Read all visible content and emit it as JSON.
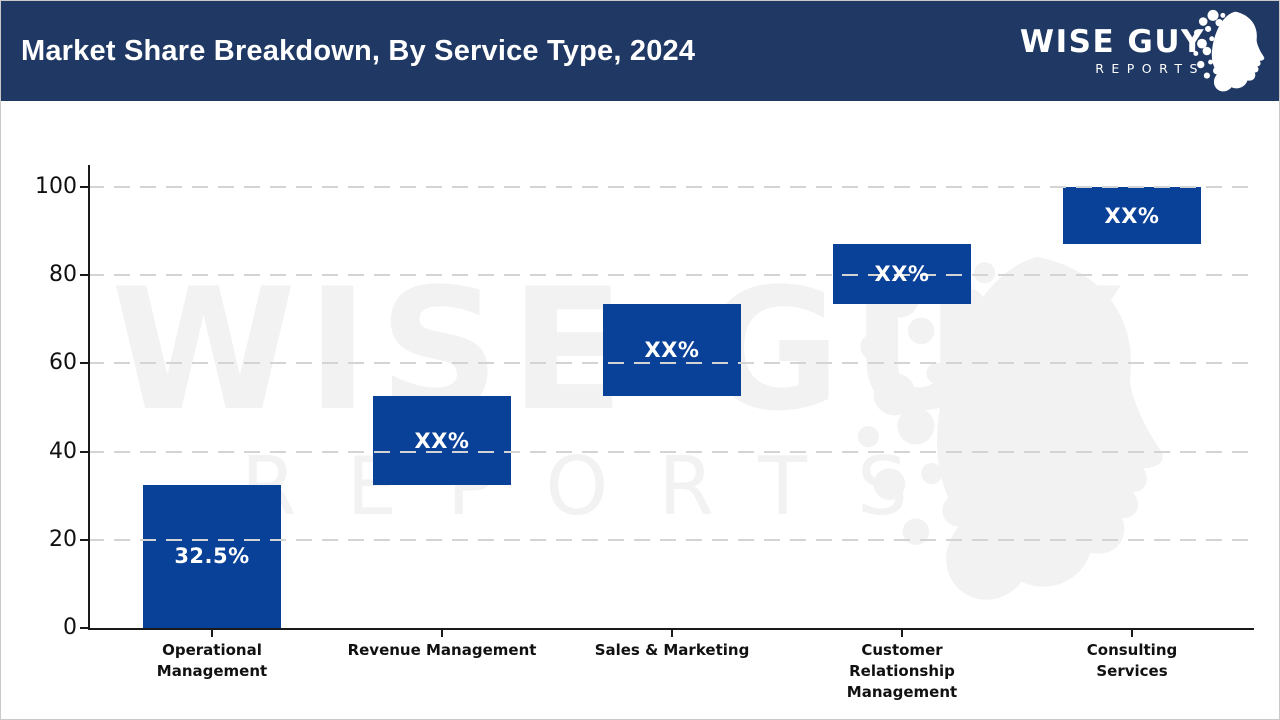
{
  "header": {
    "title": "Market Share Breakdown, By Service Type, 2024",
    "logo": {
      "line1": "WISE GUY",
      "line2": "REPORTS"
    }
  },
  "watermark": {
    "line1": "WISE GUY",
    "line2": "REPORTS"
  },
  "colors": {
    "header_bg": "#1f3864",
    "bar": "#0a4198",
    "axis": "#1a1a1a",
    "grid": "#d4d4d4",
    "watermark": "#f2f2f2",
    "bar_label": "#ffffff",
    "tick_text": "#111111"
  },
  "chart_data": {
    "type": "bar",
    "subtype": "waterfall",
    "title": "Market Share Breakdown, By Service Type, 2024",
    "categories": [
      [
        "Operational",
        "Management"
      ],
      [
        "Revenue Management"
      ],
      [
        "Sales & Marketing"
      ],
      [
        "Customer",
        "Relationship",
        "Management"
      ],
      [
        "Consulting",
        "Services"
      ]
    ],
    "segments": [
      {
        "category": "Operational Management",
        "start": 0,
        "end": 32.5,
        "label": "32.5%"
      },
      {
        "category": "Revenue Management",
        "start": 32.5,
        "end": 52.5,
        "label": "XX%"
      },
      {
        "category": "Sales & Marketing",
        "start": 52.5,
        "end": 73.5,
        "label": "XX%"
      },
      {
        "category": "Customer Relationship Management",
        "start": 73.5,
        "end": 87,
        "label": "XX%"
      },
      {
        "category": "Consulting Services",
        "start": 87,
        "end": 100,
        "label": "XX%"
      }
    ],
    "y_ticks": [
      0,
      20,
      40,
      60,
      80,
      100
    ],
    "ylim": [
      0,
      105
    ],
    "xlabel": "",
    "ylabel": "",
    "grid": "horizontal-dashed",
    "legend": "none"
  }
}
